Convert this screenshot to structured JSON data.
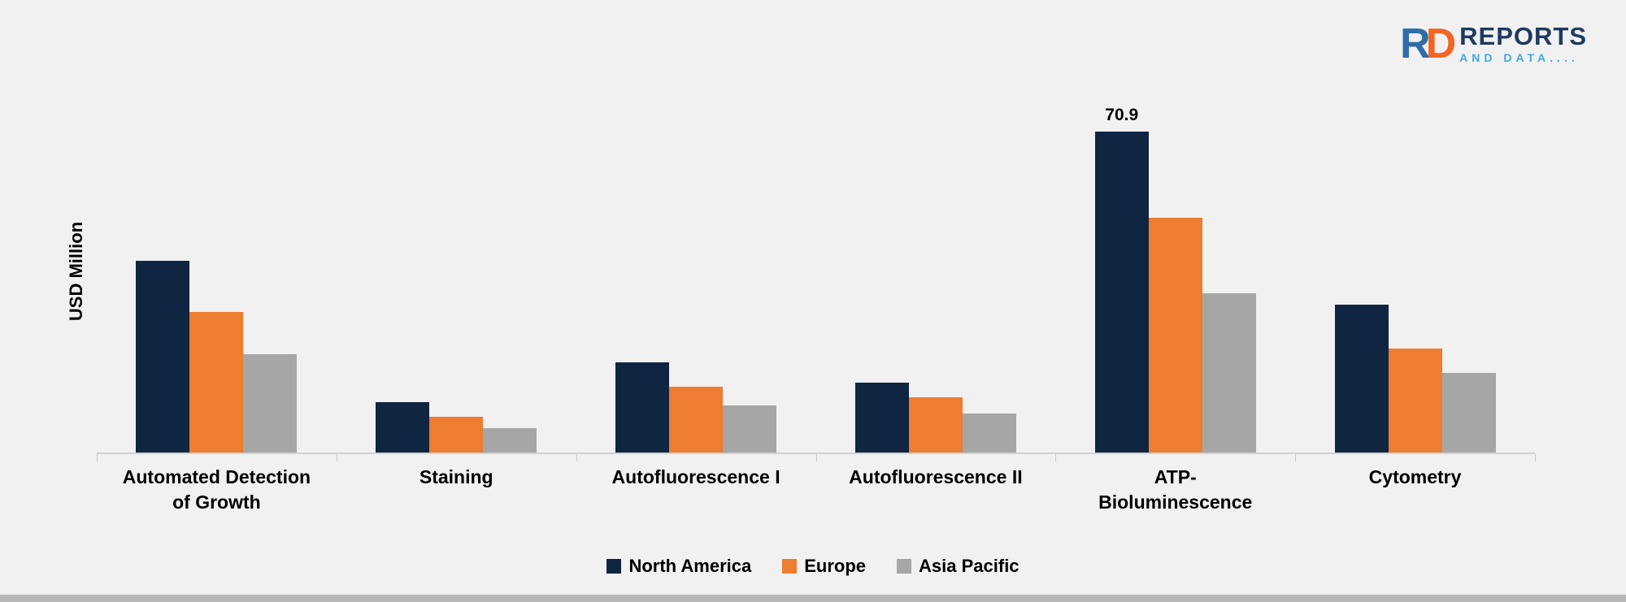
{
  "logo": {
    "brand_top": "REPORTS",
    "brand_bottom": "AND DATA....",
    "mark_r": "R",
    "mark_d": "D",
    "colors": {
      "mark_blue": "#2e6da8",
      "mark_orange": "#f26522",
      "text_navy": "#1e3a5f",
      "text_lightblue": "#3fa9dc"
    }
  },
  "chart_data": {
    "type": "bar",
    "title": "",
    "xlabel": "",
    "ylabel": "USD Million",
    "ylim": [
      0,
      80
    ],
    "grid": false,
    "legend_position": "bottom",
    "categories": [
      "Automated Detection of Growth",
      "Staining",
      "Autofluorescence I",
      "Autofluorescence II",
      "ATP-Bioluminescence",
      "Cytometry"
    ],
    "series": [
      {
        "name": "North America",
        "color": "#102542",
        "values": [
          42.4,
          11.1,
          19.9,
          15.4,
          70.9,
          32.7
        ]
      },
      {
        "name": "Europe",
        "color": "#ed7d31",
        "values": [
          31.1,
          7.9,
          14.5,
          12.2,
          51.9,
          23.0
        ]
      },
      {
        "name": "Asia Pacific",
        "color": "#a6a6a6",
        "values": [
          21.7,
          5.4,
          10.4,
          8.6,
          35.2,
          17.6
        ]
      }
    ],
    "data_labels": [
      {
        "series": "North America",
        "category": "ATP-Bioluminescence",
        "text": "70.9"
      }
    ]
  }
}
